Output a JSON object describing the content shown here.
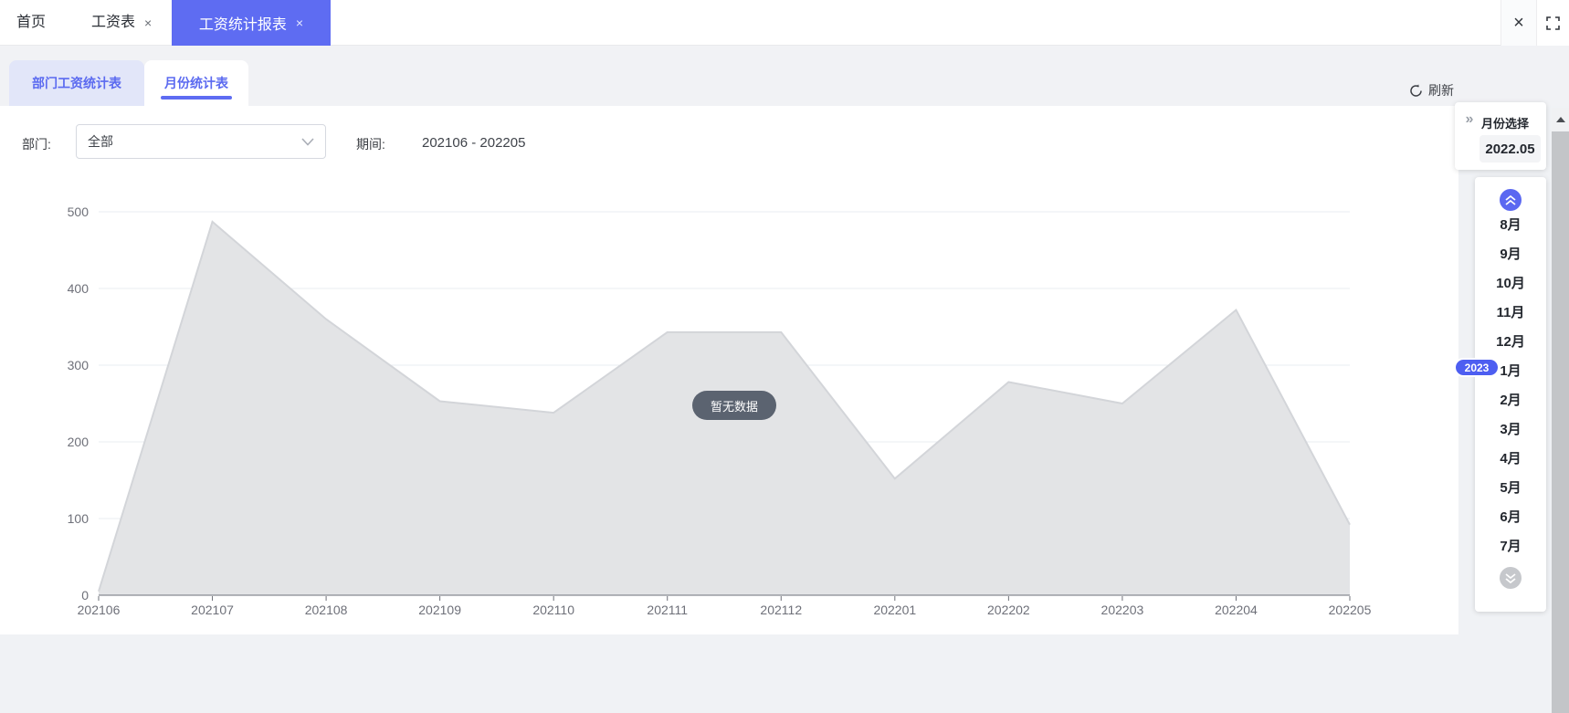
{
  "tabbar": {
    "home": "首页",
    "salary_tab": "工资表",
    "salary_tab_close": "×",
    "report_tab": "工资统计报表",
    "report_tab_close": "×",
    "window_close": "×"
  },
  "subtabs": {
    "dept_tab": "部门工资统计表",
    "month_tab": "月份统计表"
  },
  "toolbar": {
    "refresh_label": "刷新"
  },
  "filters": {
    "dept_label": "部门:",
    "dept_value": "全部",
    "period_label": "期间:",
    "period_value": "202106 - 202205"
  },
  "tooltip": {
    "no_data": "暂无数据"
  },
  "month_panel": {
    "collapse_icon": "»",
    "title": "月份选择",
    "current": "2022.05",
    "year_badge": "2023",
    "months": [
      "8月",
      "9月",
      "10月",
      "11月",
      "12月",
      "1月",
      "2月",
      "3月",
      "4月",
      "5月",
      "6月",
      "7月"
    ]
  },
  "chart_data": {
    "type": "area",
    "title": "",
    "xlabel": "",
    "ylabel": "",
    "categories": [
      "202106",
      "202107",
      "202108",
      "202109",
      "202110",
      "202111",
      "202112",
      "202201",
      "202202",
      "202203",
      "202204",
      "202205"
    ],
    "values": [
      5,
      487,
      360,
      253,
      238,
      343,
      343,
      152,
      278,
      250,
      372,
      92
    ],
    "ylim": [
      0,
      500
    ],
    "yticks": [
      0,
      100,
      200,
      300,
      400,
      500
    ],
    "grid": true,
    "legend": false,
    "colors": {
      "area_fill": "#e3e4e6",
      "area_line": "#d3d5d9",
      "gridline": "#e8ecf2",
      "axis_line": "#6e7079",
      "tick_label": "#6e7079"
    }
  },
  "accent_color": "#5e6cf2"
}
